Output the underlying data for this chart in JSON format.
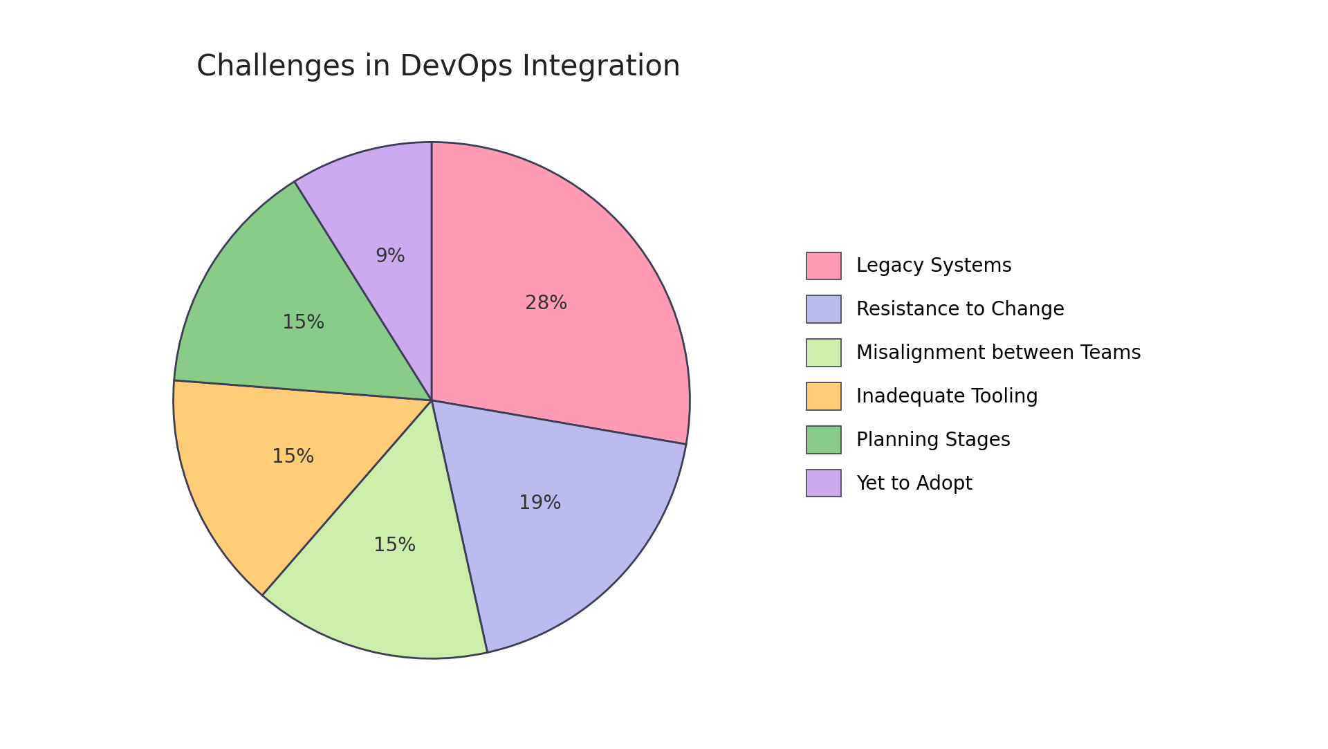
{
  "title": "Challenges in DevOps Integration",
  "labels": [
    "Legacy Systems",
    "Resistance to Change",
    "Misalignment between Teams",
    "Inadequate Tooling",
    "Planning Stages",
    "Yet to Adopt"
  ],
  "values": [
    28,
    19,
    15,
    15,
    15,
    9
  ],
  "colors": [
    "#FF9BB5",
    "#BBBBEE",
    "#CCEEAA",
    "#FFCC77",
    "#88CC88",
    "#CCAAEE"
  ],
  "pct_labels": [
    "28%",
    "19%",
    "15%",
    "15%",
    "15%",
    "9%"
  ],
  "startangle": 90,
  "title_fontsize": 30,
  "label_fontsize": 20,
  "legend_fontsize": 20,
  "background_color": "#FFFFFF",
  "edge_color": "#3D3D55",
  "edge_width": 2.0
}
